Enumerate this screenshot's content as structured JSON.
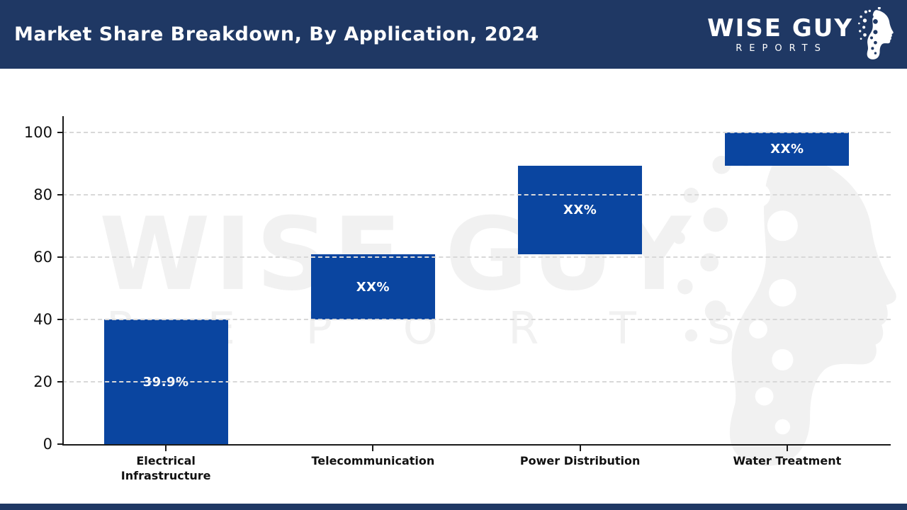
{
  "header": {
    "title": "Market Share Breakdown, By Application, 2024",
    "bg_color": "#1f3864",
    "logo": {
      "line1": "WISE GUY",
      "line2": "REPORTS"
    }
  },
  "watermark": {
    "line1": "WISE GUY",
    "line2": "R E P O R T S"
  },
  "footer": {
    "bg_color": "#1f3864"
  },
  "chart_data": {
    "type": "bar",
    "subtype": "waterfall",
    "title": "Market Share Breakdown, By Application, 2024",
    "categories": [
      "Electrical Infrastructure",
      "Telecommunication",
      "Power Distribution",
      "Water Treatment"
    ],
    "bars": [
      {
        "category": "Electrical Infrastructure",
        "start": 0,
        "end": 39.9,
        "label": "39.9%"
      },
      {
        "category": "Telecommunication",
        "start": 39.9,
        "end": 61.0,
        "label": "XX%"
      },
      {
        "category": "Power Distribution",
        "start": 61.0,
        "end": 89.3,
        "label": "XX%"
      },
      {
        "category": "Water Treatment",
        "start": 89.3,
        "end": 100.0,
        "label": "XX%"
      }
    ],
    "xlabel": "",
    "ylabel": "",
    "ylim": [
      0,
      100
    ],
    "yticks": [
      0,
      20,
      40,
      60,
      80,
      100
    ],
    "bar_color": "#0a45a0",
    "grid": "horizontal-dashed",
    "gridline_color": "#d8d8d8",
    "legend": "none"
  }
}
